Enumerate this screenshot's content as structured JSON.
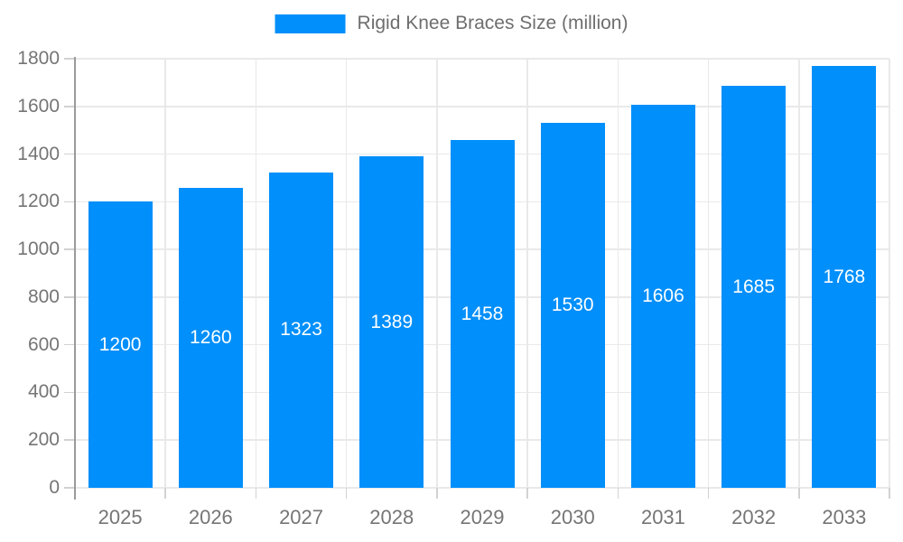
{
  "chart_data": {
    "type": "bar",
    "title": "Rigid Knee Braces Size (million)",
    "categories": [
      "2025",
      "2026",
      "2027",
      "2028",
      "2029",
      "2030",
      "2031",
      "2032",
      "2033"
    ],
    "series": [
      {
        "name": "Rigid Knee Braces Size (million)",
        "values": [
          1200,
          1260,
          1323,
          1389,
          1458,
          1530,
          1606,
          1685,
          1768
        ]
      }
    ],
    "xlabel": "",
    "ylabel": "",
    "ylim": [
      0,
      1800
    ],
    "ytick_step": 200,
    "ytick_labels": [
      "0",
      "200",
      "400",
      "600",
      "800",
      "1000",
      "1200",
      "1400",
      "1600",
      "1800"
    ],
    "grid": true,
    "legend_position": "top",
    "value_labels": "inside-center"
  },
  "colors": {
    "bar": "#008FFB",
    "bar_value_text": "#ffffff",
    "grid": "#e9e9e9",
    "axis_line": "#9a9a9a",
    "tick": "#d2d2d2",
    "axis_text": "#757575",
    "legend_text": "#6e6e6e",
    "background": "#ffffff"
  }
}
